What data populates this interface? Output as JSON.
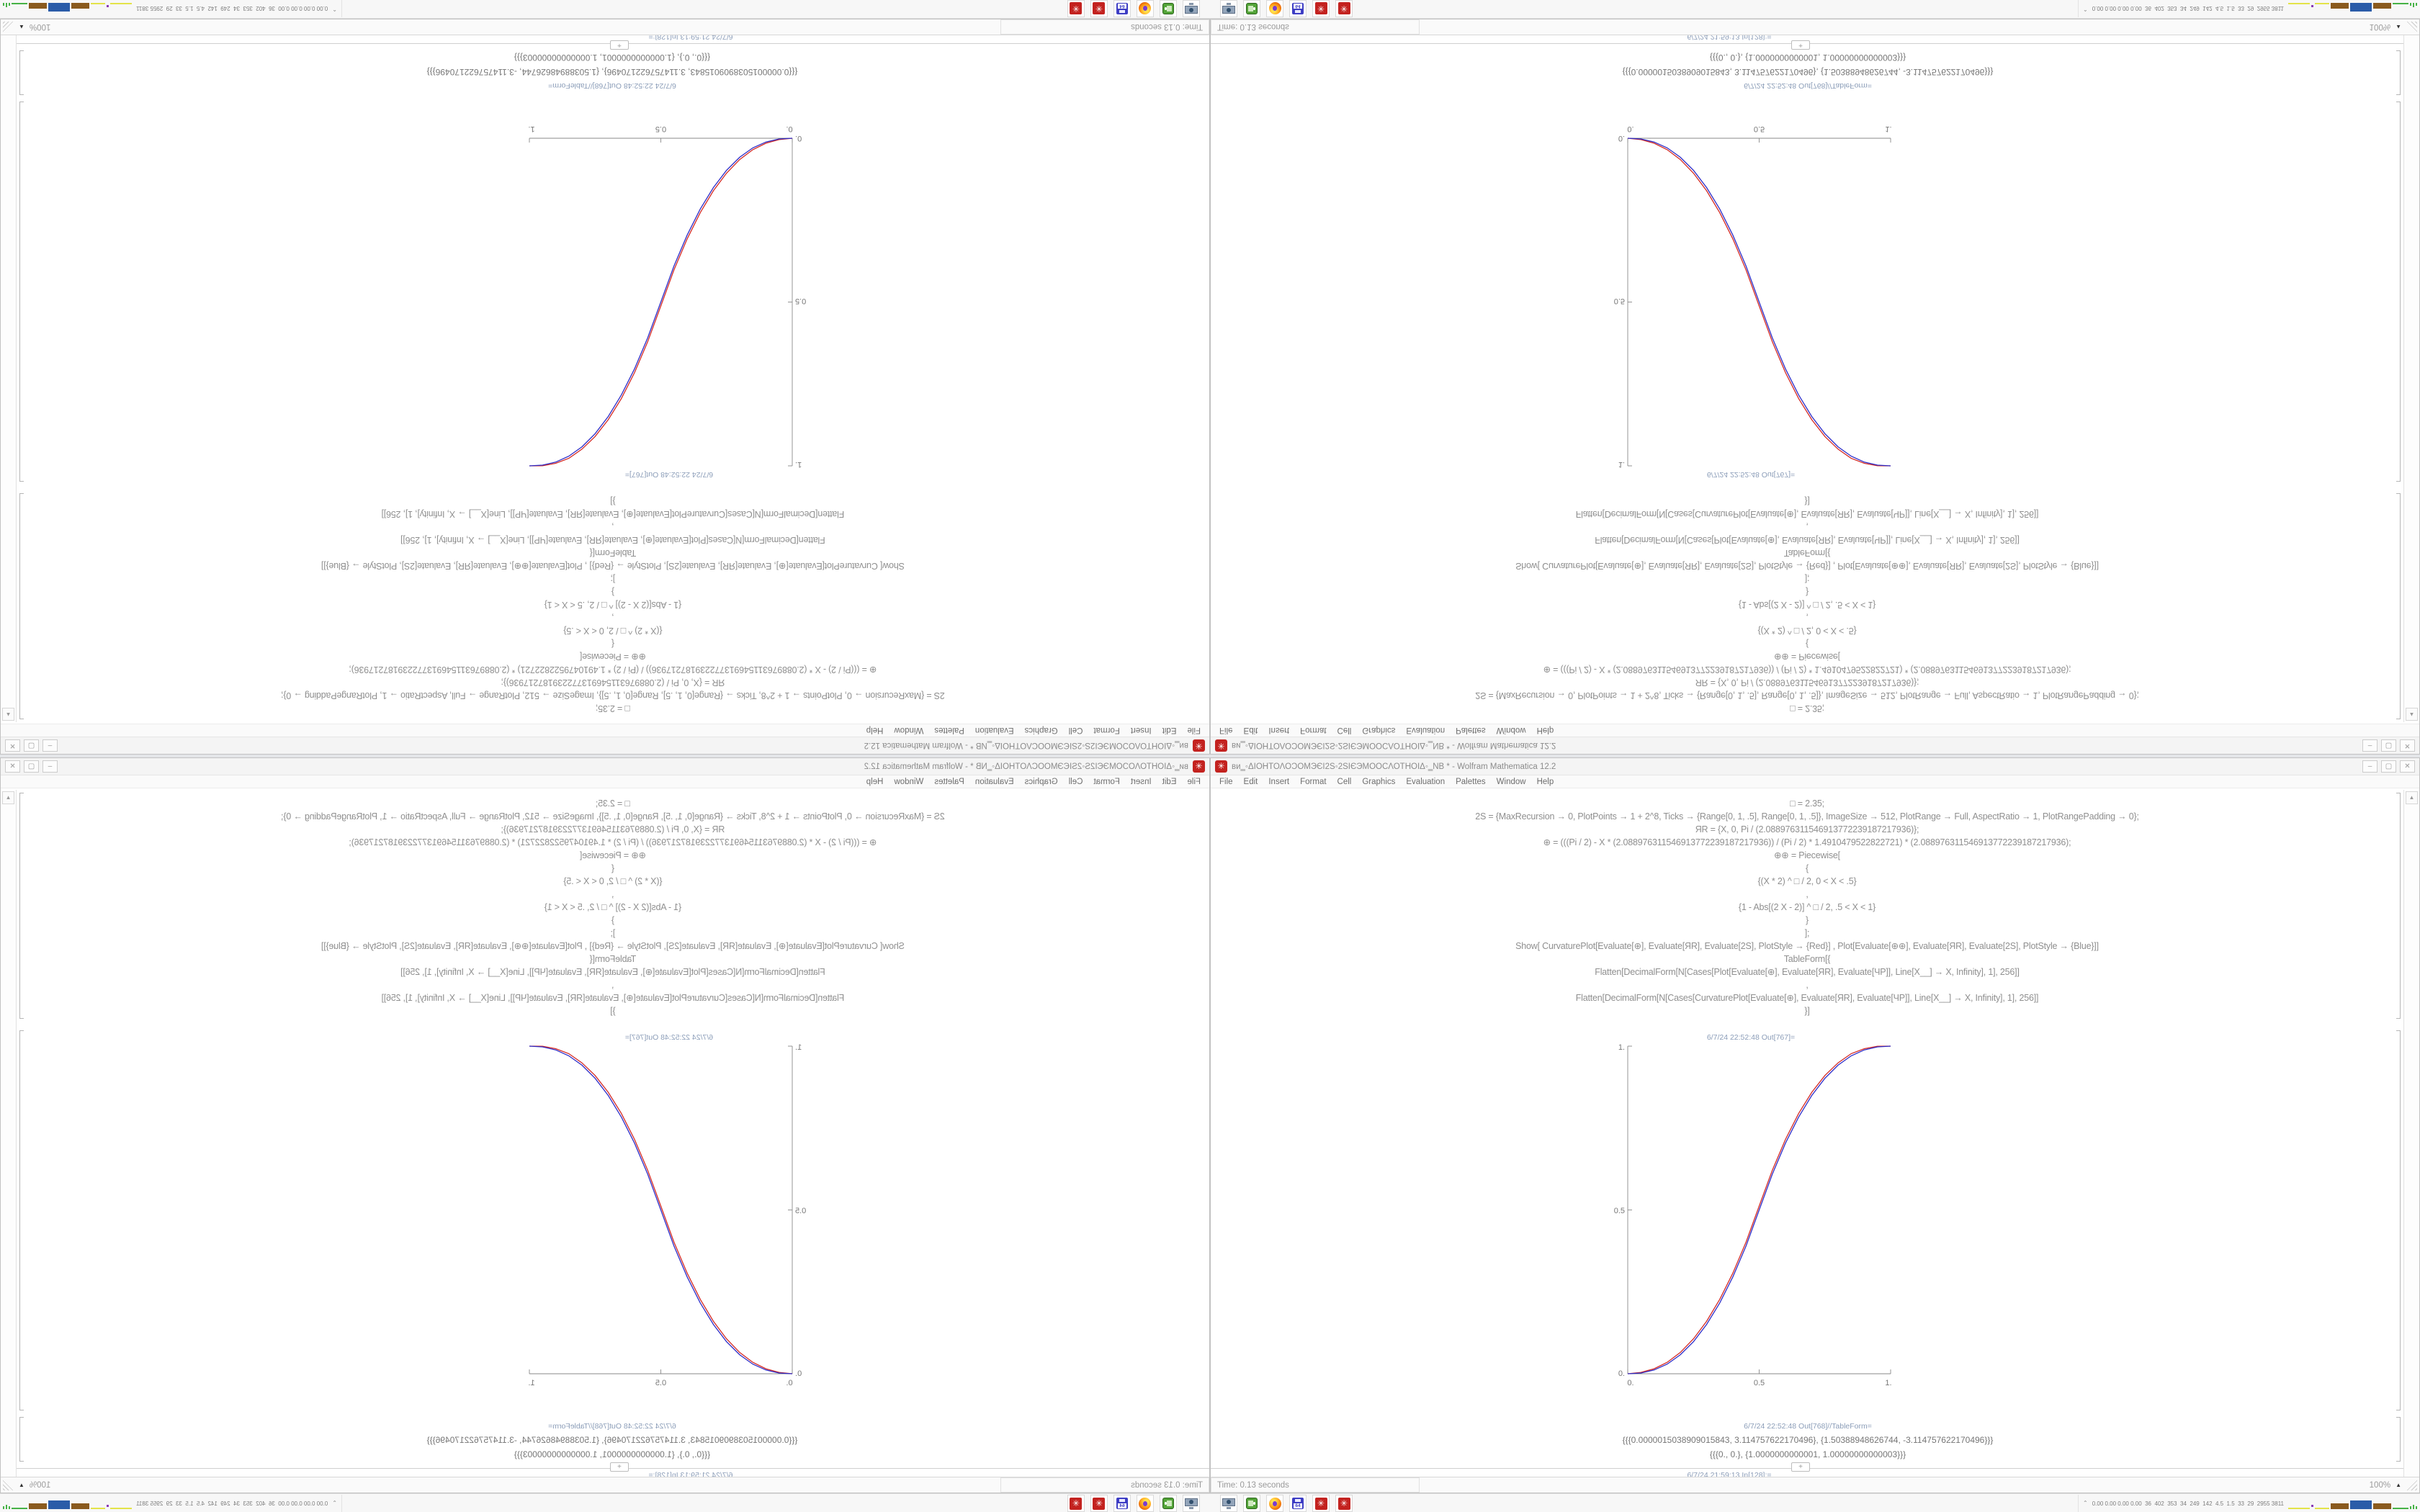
{
  "window": {
    "title": "ви‗◦ΔΙΟΗΤΟΛΟϽΟΜЭЄΙ2S◦2SΙЄЭΜΟΟϹΛΟΤΗΟΙΔ◦‗NB * - Wolfram Mathematica 12.2",
    "app_icon_glyph": "✳",
    "menu": [
      "File",
      "Edit",
      "Insert",
      "Format",
      "Cell",
      "Graphics",
      "Evaluation",
      "Palettes",
      "Window",
      "Help"
    ],
    "buttons": {
      "minimize": "–",
      "maximize": "▢",
      "close": "✕"
    }
  },
  "notebook": {
    "code_lines": [
      "□ = 2.35;",
      "2S = {MaxRecursion → 0, PlotPoints → 1 + 2^8, Ticks → {Range[0, 1, .5], Range[0, 1, .5]}, ImageSize → 512, PlotRange → Full, AspectRatio → 1, PlotRangePadding → 0};",
      "ЯR = {X, 0, Pi / (2.088976311546913772239187217936)};",
      "⊕ = (((Pi / 2) - X * (2.088976311546913772239187217936)) / (Pi / 2) * 1.4910479522822721) * (2.088976311546913772239187217936);",
      "⊕⊕ = Piecewise[",
      "{",
      "{(X * 2) ^ □ / 2, 0 < X < .5}",
      ",",
      "{1 - Abs[(2 X - 2)] ^ □ / 2, .5 < X < 1}",
      "}",
      "];",
      "Show[  CurvaturePlot[Evaluate[⊕], Evaluate[ЯR], Evaluate[2S], PlotStyle → {Red}]  ,  Plot[Evaluate[⊕⊕], Evaluate[ЯR], Evaluate[2S], PlotStyle → {Blue}]]",
      "TableForm[{",
      "Flatten[DecimalForm[N[Cases[Plot[Evaluate[⊕], Evaluate[ЯR], Evaluate[ЧP]], Line[X__] → X, Infinity], 1], 256]]",
      ",",
      "Flatten[DecimalForm[N[Cases[CurvaturePlot[Evaluate[⊕], Evaluate[ЯR], Evaluate[ЧP]], Line[X__] → X, Infinity], 1], 256]]",
      "}]"
    ],
    "out_plot_label": "6/7/24 22:52:48 Out[767]=",
    "out_table_label": "6/7/24 22:52:48 Out[768]//TableForm=",
    "table_lines": [
      "{{{0.0000015038909015843, 3.114757622170496}, {1.50388948626744, -3.114757622170496}}}",
      "{{{0., 0.}, {1.0000000000001, 1.00000000000003}}}"
    ],
    "next_in_label": "6/7/24 21:59:13 In[128]:=",
    "new_cell_plus": "+"
  },
  "chart_data": {
    "type": "line",
    "title": "",
    "xlabel": "",
    "ylabel": "",
    "xlim": [
      0,
      1
    ],
    "ylim": [
      0,
      1
    ],
    "grid": false,
    "legend": "none",
    "xticks": [
      "0.",
      "0.5",
      "1."
    ],
    "yticks": [
      "0.",
      "0.5",
      "1."
    ],
    "x": [
      0,
      0.05,
      0.1,
      0.15,
      0.2,
      0.25,
      0.3,
      0.35,
      0.4,
      0.45,
      0.5,
      0.55,
      0.6,
      0.65,
      0.7,
      0.75,
      0.8,
      0.85,
      0.9,
      0.95,
      1
    ],
    "series": [
      {
        "name": "CurvaturePlot (Red)",
        "color": "#d42a24",
        "values": [
          0,
          0.0041,
          0.0151,
          0.0349,
          0.0651,
          0.1065,
          0.1603,
          0.2272,
          0.3074,
          0.4022,
          0.512,
          0.6216,
          0.7154,
          0.7948,
          0.8591,
          0.9105,
          0.9491,
          0.9772,
          0.9923,
          0.9997,
          1
        ]
      },
      {
        "name": "Plot (Blue)",
        "color": "#2d2dc8",
        "values": [
          0,
          0.0022,
          0.0114,
          0.0295,
          0.058,
          0.098,
          0.1506,
          0.2162,
          0.296,
          0.3903,
          0.5,
          0.6097,
          0.704,
          0.7838,
          0.8494,
          0.902,
          0.942,
          0.9705,
          0.9886,
          0.9978,
          1
        ]
      }
    ]
  },
  "statusbar": {
    "time": "Time: 0.13 seconds",
    "zoom": "100%",
    "zoom_arrow": "▲"
  },
  "scrollbar": {
    "up_arrow": "▲"
  },
  "taskbar": {
    "icons": [
      "display-capture-icon",
      "green-gadget-icon",
      "firefox-icon",
      "floppy-64-icon",
      "mathematica-icon",
      "mathematica-icon"
    ],
    "floppy_label": "64",
    "wolfram_glyph": "✳",
    "tray": {
      "chevron": "⌃",
      "numbers": "0.00 0.00 0.00 0.00  36  402  353  34  249  142  4.5  1.5  33  29  2955 3811"
    }
  },
  "montage": {
    "note_colors": {
      "curve_red": "#d42a24",
      "curve_blue": "#2d2dc8",
      "label_blue": "#8b9db8",
      "app_red": "#c3221f"
    }
  }
}
